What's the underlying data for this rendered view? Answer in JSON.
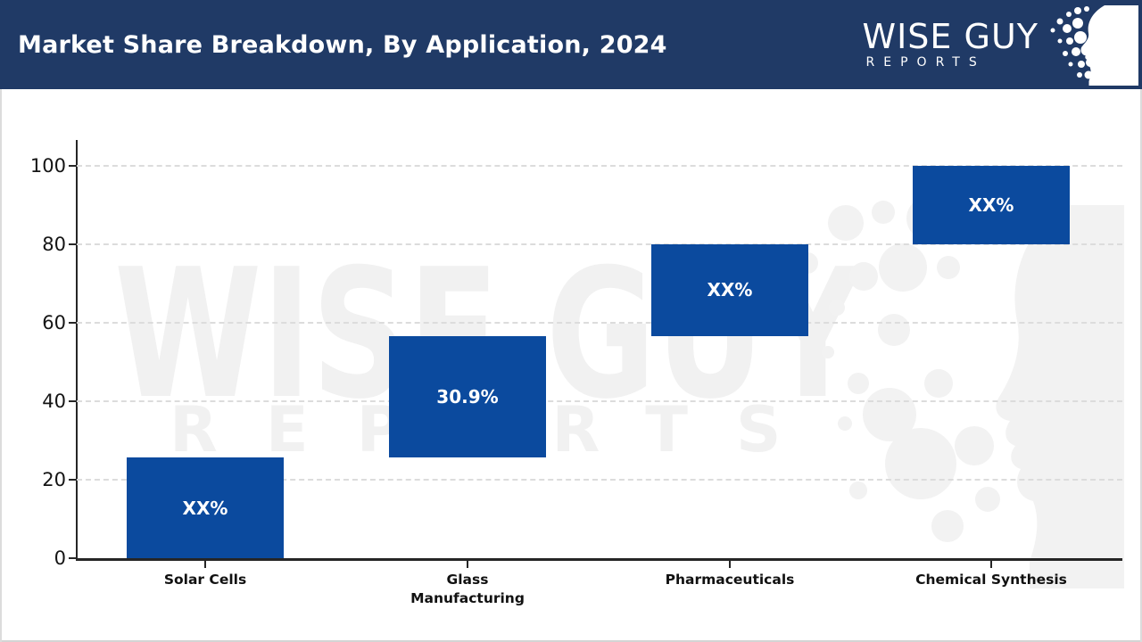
{
  "header": {
    "title": "Market Share Breakdown, By Application, 2024",
    "logo": {
      "brand_top": "WISE GUY",
      "brand_bottom": "REPORTS"
    }
  },
  "watermark": {
    "line1": "WISE GUY",
    "line2": "REPORTS"
  },
  "chart_data": {
    "type": "bar",
    "subtype": "waterfall-stepped-share",
    "title": "Market Share Breakdown, By Application, 2024",
    "categories": [
      "Solar Cells",
      "Glass Manufacturing",
      "Pharmaceuticals",
      "Chemical Synthesis"
    ],
    "category_display_lines": [
      [
        "Solar Cells"
      ],
      [
        "Glass",
        "Manufacturing"
      ],
      [
        "Pharmaceuticals"
      ],
      [
        "Chemical Synthesis"
      ]
    ],
    "segments": [
      {
        "category": "Solar Cells",
        "start": 0,
        "end": 25.6,
        "value_pct_est": 25.6,
        "value_label": "XX%"
      },
      {
        "category": "Glass Manufacturing",
        "start": 25.6,
        "end": 56.5,
        "value_pct_est": 30.9,
        "value_label": "30.9%"
      },
      {
        "category": "Pharmaceuticals",
        "start": 56.5,
        "end": 80.1,
        "value_pct_est": 23.6,
        "value_label": "XX%"
      },
      {
        "category": "Chemical Synthesis",
        "start": 80.1,
        "end": 100,
        "value_pct_est": 19.9,
        "value_label": "XX%"
      }
    ],
    "yticks": [
      0,
      20,
      40,
      60,
      80,
      100
    ],
    "ylim": [
      0,
      106
    ],
    "grid": "horizontal-dashed",
    "legend": "none",
    "bar_color": "#0B4A9E",
    "value_label_color": "#FFFFFF"
  },
  "colors": {
    "header_bg": "#203A66",
    "bar": "#0B4A9E",
    "grid": "#DCDCDC",
    "axis": "#262626",
    "tick_text": "#141414",
    "watermark": "#F1F1F1"
  }
}
